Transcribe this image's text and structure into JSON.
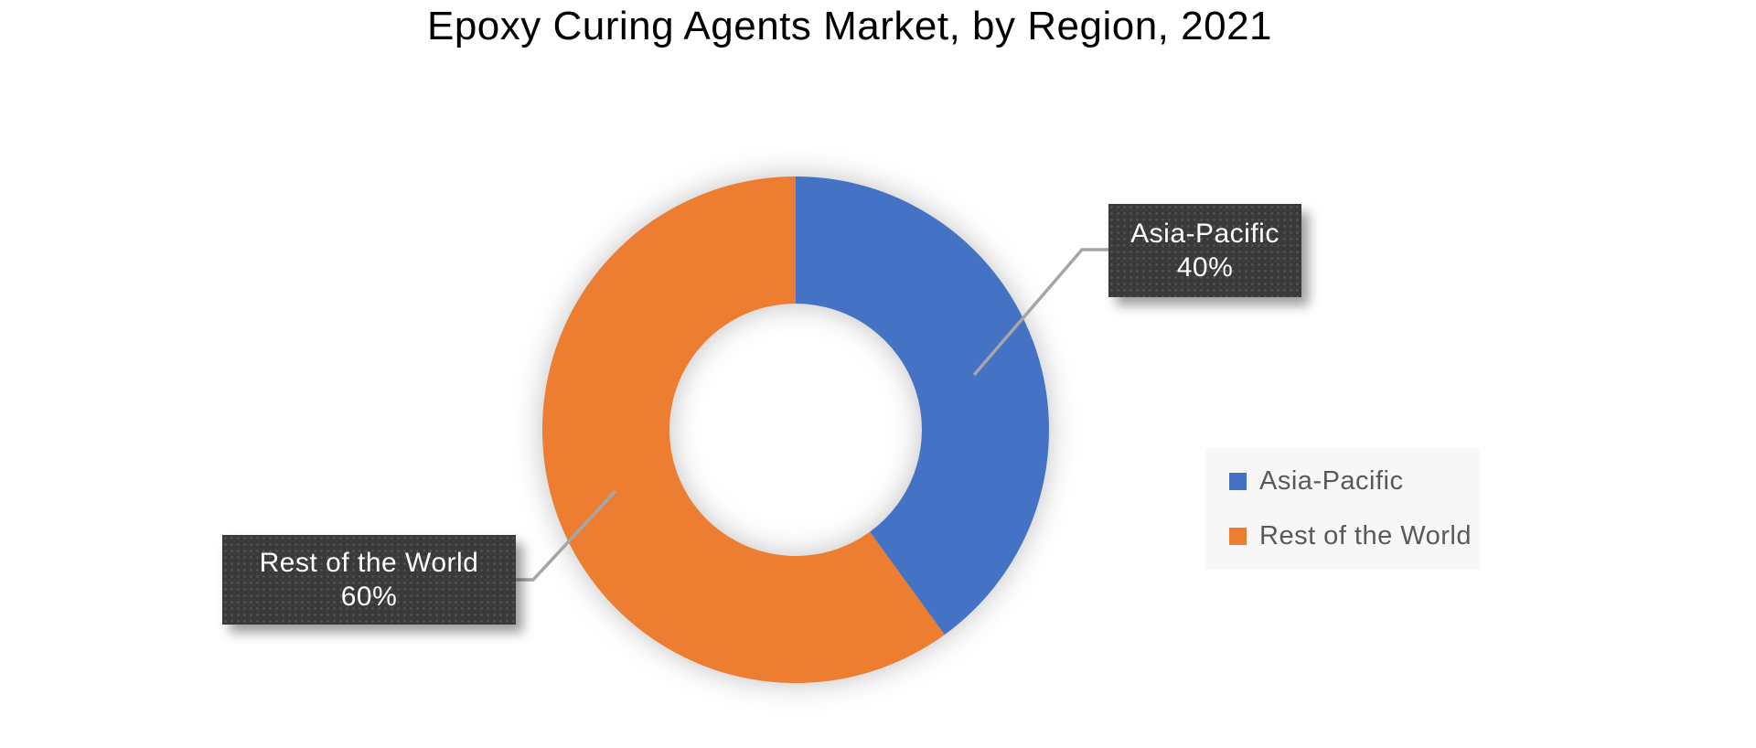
{
  "title": "Epoxy Curing Agents Market, by Region, 2021",
  "chart_data": {
    "type": "pie",
    "subtype": "donut",
    "title": "Epoxy Curing Agents Market, by Region, 2021",
    "categories": [
      "Asia-Pacific",
      "Rest of the World"
    ],
    "values": [
      40,
      60
    ],
    "unit": "%",
    "colors": [
      "#4472C4",
      "#ED7D31"
    ],
    "start_angle_deg": 0,
    "direction": "clockwise",
    "hole_ratio": 0.5,
    "legend_position": "right",
    "grid": false,
    "data_labels": [
      {
        "label": "Asia-Pacific",
        "value_text": "40%"
      },
      {
        "label": "Rest of the World",
        "value_text": "60%"
      }
    ]
  },
  "callouts": [
    {
      "line1": "Asia-Pacific",
      "line2": "40%"
    },
    {
      "line1": "Rest of the World",
      "line2": "60%"
    }
  ],
  "legend": {
    "items": [
      {
        "label": "Asia-Pacific",
        "color": "#4472C4"
      },
      {
        "label": "Rest of the World",
        "color": "#ED7D31"
      }
    ]
  },
  "colors": {
    "slice_asia_pacific": "#4472C4",
    "slice_rest_of_world": "#ED7D31",
    "callout_background": "#3A3A3A",
    "callout_text": "#FFFFFF",
    "leader_line": "#A6A6A6",
    "legend_background": "#F7F7F7",
    "legend_text": "#595959",
    "title_text": "#000000"
  }
}
